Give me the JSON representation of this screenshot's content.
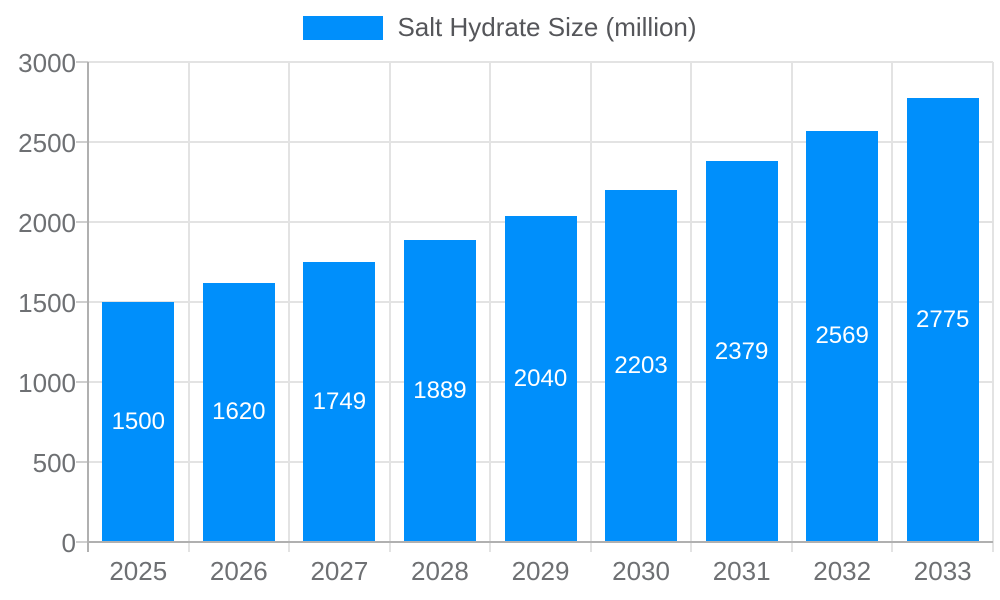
{
  "chart_data": {
    "type": "bar",
    "title": "",
    "legend": "Salt Hydrate Size (million)",
    "legend_position": "top",
    "categories": [
      "2025",
      "2026",
      "2027",
      "2028",
      "2029",
      "2030",
      "2031",
      "2032",
      "2033"
    ],
    "values": [
      1500,
      1620,
      1749,
      1889,
      2040,
      2203,
      2379,
      2569,
      2775
    ],
    "xlabel": "",
    "ylabel": "",
    "ylim": [
      0,
      3000
    ],
    "yticks": [
      0,
      500,
      1000,
      1500,
      2000,
      2500,
      3000
    ],
    "grid": true,
    "bar_labels_inside": true,
    "colors": {
      "bar": "#008FFB",
      "bar_label": "#ffffff",
      "grid": "#e3e3e3",
      "axis": "#b0b0b0",
      "tick": "#cfcfcf",
      "axis_text": "#6e7073",
      "legend_text": "#55565a",
      "background": "#ffffff"
    }
  }
}
